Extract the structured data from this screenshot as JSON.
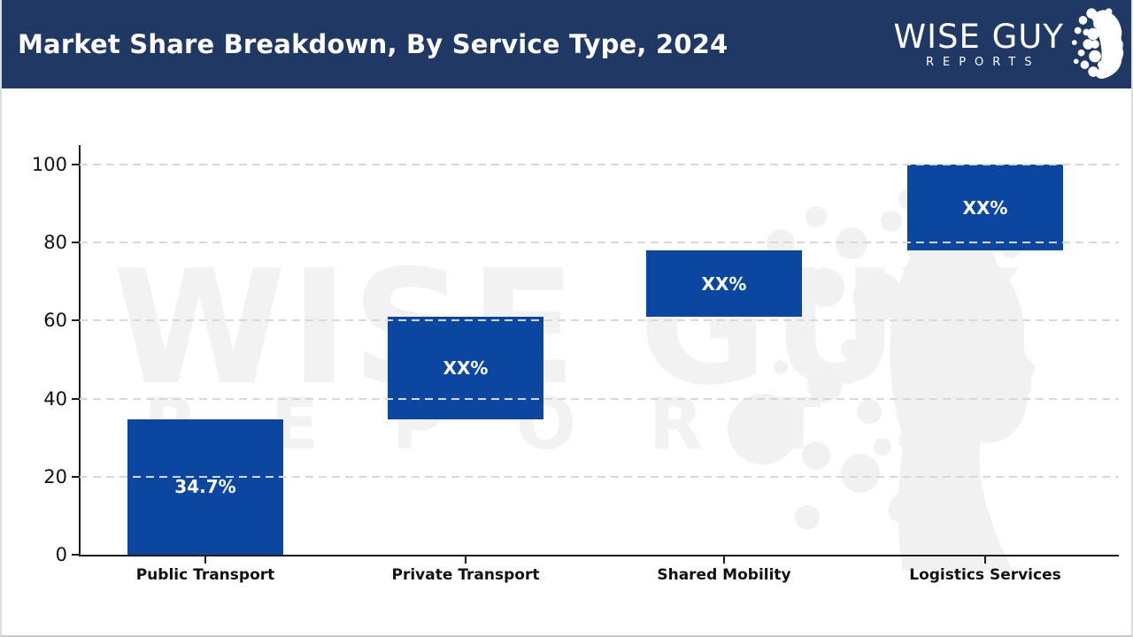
{
  "header": {
    "title": "Market Share Breakdown, By Service Type, 2024",
    "logo": {
      "line1": "WISE GUY",
      "line2": "REPORTS"
    }
  },
  "watermark": {
    "line1": "WISE GUY",
    "line2": "REPORTS"
  },
  "colors": {
    "header_bg": "#1f3864",
    "bar": "#0b46a1",
    "bar_label": "#ffffff",
    "axis": "#1a1a1a",
    "grid": "#d8d8d8",
    "watermark": "#f2f2f2"
  },
  "chart_data": {
    "type": "bar",
    "subtype": "waterfall",
    "title": "Market Share Breakdown, By Service Type, 2024",
    "xlabel": "",
    "ylabel": "",
    "ylim": [
      0,
      100
    ],
    "yticks": [
      0,
      20,
      40,
      60,
      80,
      100
    ],
    "grid": "horizontal-dashed",
    "legend_position": "none",
    "categories": [
      "Public Transport",
      "Private Transport",
      "Shared Mobility",
      "Logistics Services"
    ],
    "series": [
      {
        "name": "Market Share",
        "segments": [
          {
            "category": "Public Transport",
            "start": 0,
            "end": 34.7,
            "label": "34.7%"
          },
          {
            "category": "Private Transport",
            "start": 34.7,
            "end": 61,
            "label": "XX%"
          },
          {
            "category": "Shared Mobility",
            "start": 61,
            "end": 78,
            "label": "XX%"
          },
          {
            "category": "Logistics Services",
            "start": 78,
            "end": 100,
            "label": "XX%"
          }
        ]
      }
    ]
  }
}
